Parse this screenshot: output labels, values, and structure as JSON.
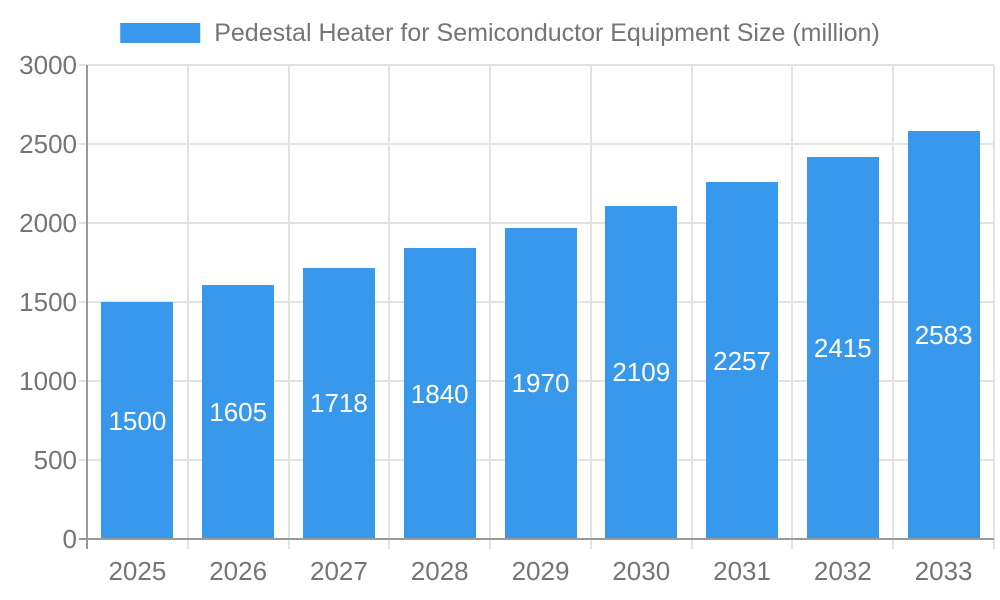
{
  "legend": {
    "label": "Pedestal Heater for Semiconductor Equipment Size (million)",
    "swatch_color": "#3899ec",
    "text_color": "#757575"
  },
  "chart_data": {
    "type": "bar",
    "title": "Pedestal Heater for Semiconductor Equipment Size (million)",
    "series_name": "Pedestal Heater for Semiconductor Equipment Size (million)",
    "categories": [
      "2025",
      "2026",
      "2027",
      "2028",
      "2029",
      "2030",
      "2031",
      "2032",
      "2033"
    ],
    "values": [
      1500,
      1605,
      1718,
      1840,
      1970,
      2109,
      2257,
      2415,
      2583
    ],
    "xlabel": "",
    "ylabel": "",
    "ylim": [
      0,
      3000
    ],
    "yticks": [
      0,
      500,
      1000,
      1500,
      2000,
      2500,
      3000
    ],
    "grid": true,
    "legend_position": "top",
    "bar_color": "#3899ec",
    "bar_label_color": "#ffffff",
    "axis_text_color": "#757575",
    "axis_line_color": "#9a9a9a",
    "gridline_color": "#e3e3e3",
    "background_color": "#ffffff"
  }
}
